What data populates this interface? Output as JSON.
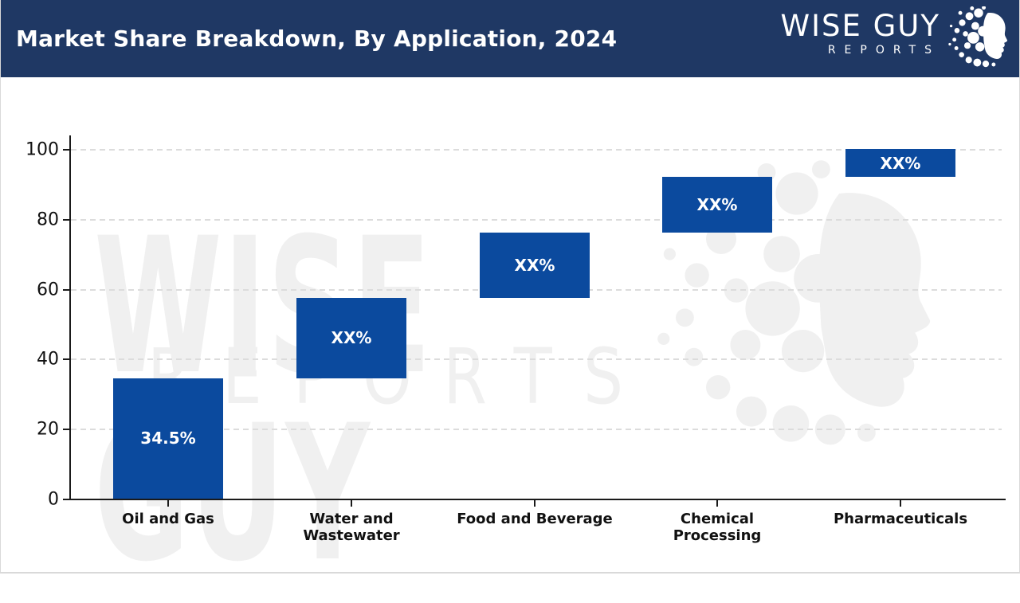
{
  "header": {
    "title": "Market Share Breakdown, By Application, 2024",
    "logo_line1": "WISE GUY",
    "logo_line2": "REPORTS",
    "bg_color": "#1f3864"
  },
  "watermark": {
    "line1": "WISE GUY",
    "line2": "REPORTS"
  },
  "chart_data": {
    "type": "bar",
    "subtype": "floating-waterfall",
    "title": "Market Share Breakdown, By Application, 2024",
    "categories": [
      "Oil and Gas",
      "Water and Wastewater",
      "Food and Beverage",
      "Chemical Processing",
      "Pharmaceuticals"
    ],
    "category_label_lines": [
      [
        "Oil and Gas"
      ],
      [
        "Water and",
        "Wastewater"
      ],
      [
        "Food and Beverage"
      ],
      [
        "Chemical",
        "Processing"
      ],
      [
        "Pharmaceuticals"
      ]
    ],
    "series": [
      {
        "category": "Oil and Gas",
        "start": 0,
        "end": 34.5,
        "label": "34.5%"
      },
      {
        "category": "Water and Wastewater",
        "start": 34.5,
        "end": 57.5,
        "label": "XX%"
      },
      {
        "category": "Food and Beverage",
        "start": 57.5,
        "end": 76,
        "label": "XX%"
      },
      {
        "category": "Chemical Processing",
        "start": 76,
        "end": 92,
        "label": "XX%"
      },
      {
        "category": "Pharmaceuticals",
        "start": 92,
        "end": 100,
        "label": "XX%"
      }
    ],
    "xlabel": "",
    "ylabel": "",
    "yticks": [
      0,
      20,
      40,
      60,
      80,
      100
    ],
    "ylim": [
      0,
      104
    ],
    "grid": "horizontal-dashed",
    "legend": "none",
    "theme": {
      "bar_color": "#0b4a9e",
      "bar_label_color": "#ffffff",
      "header_bg": "#1f3864",
      "grid_color": "#dcdcdc",
      "axis_color": "#1a1a1a",
      "watermark_color": "#f0f0f0"
    }
  }
}
